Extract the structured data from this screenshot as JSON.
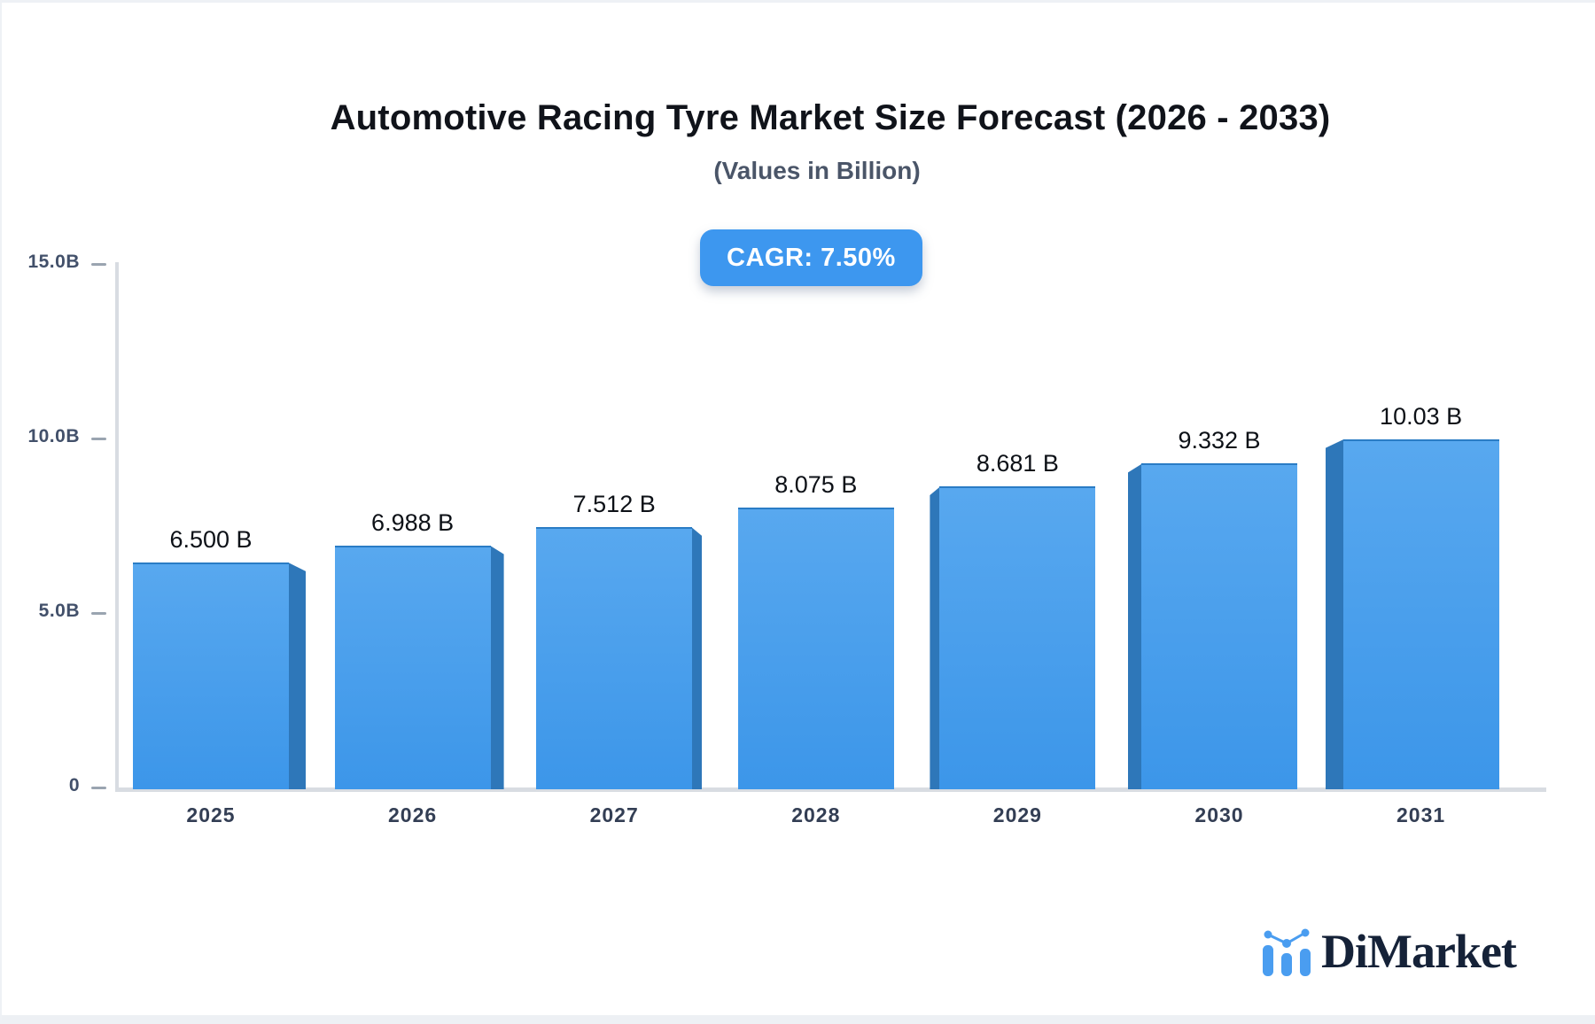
{
  "title": "Automotive Racing Tyre Market Size Forecast (2026 - 2033)",
  "subtitle": "(Values in Billion)",
  "badge": {
    "label": "CAGR: 7.50%",
    "bg_color": "#3d97ef",
    "text_color": "#ffffff"
  },
  "brand": {
    "name": "DiMarket",
    "icon": "bar-chart-logo-icon",
    "text_color": "#152238",
    "icon_color": "#4a9df0"
  },
  "chart_data": {
    "type": "bar",
    "categories": [
      "2025",
      "2026",
      "2027",
      "2028",
      "2029",
      "2030",
      "2031"
    ],
    "values": [
      6.5,
      6.988,
      7.512,
      8.075,
      8.681,
      9.332,
      10.03
    ],
    "value_labels": [
      "6.500 B",
      "6.988 B",
      "7.512 B",
      "8.075 B",
      "8.681 B",
      "9.332 B",
      "10.03 B"
    ],
    "title": "Automotive Racing Tyre Market Size Forecast (2026 - 2033)",
    "xlabel": "",
    "ylabel": "",
    "ylim": [
      0,
      15
    ],
    "y_ticks": [
      {
        "label": "15.0B",
        "value": 15
      },
      {
        "label": "10.0B",
        "value": 10
      },
      {
        "label": "5.0B",
        "value": 5
      },
      {
        "label": "0",
        "value": 0
      }
    ],
    "grid": false,
    "legend": "none",
    "style_3d": true,
    "colors": {
      "bar_top": "#58a8ef",
      "bar_bottom": "#3c96e9",
      "bar_side": "#2e77b9",
      "bar_edge": "#2a7cc5",
      "axis": "#d8dce2",
      "tick": "#9aa4b0"
    }
  }
}
